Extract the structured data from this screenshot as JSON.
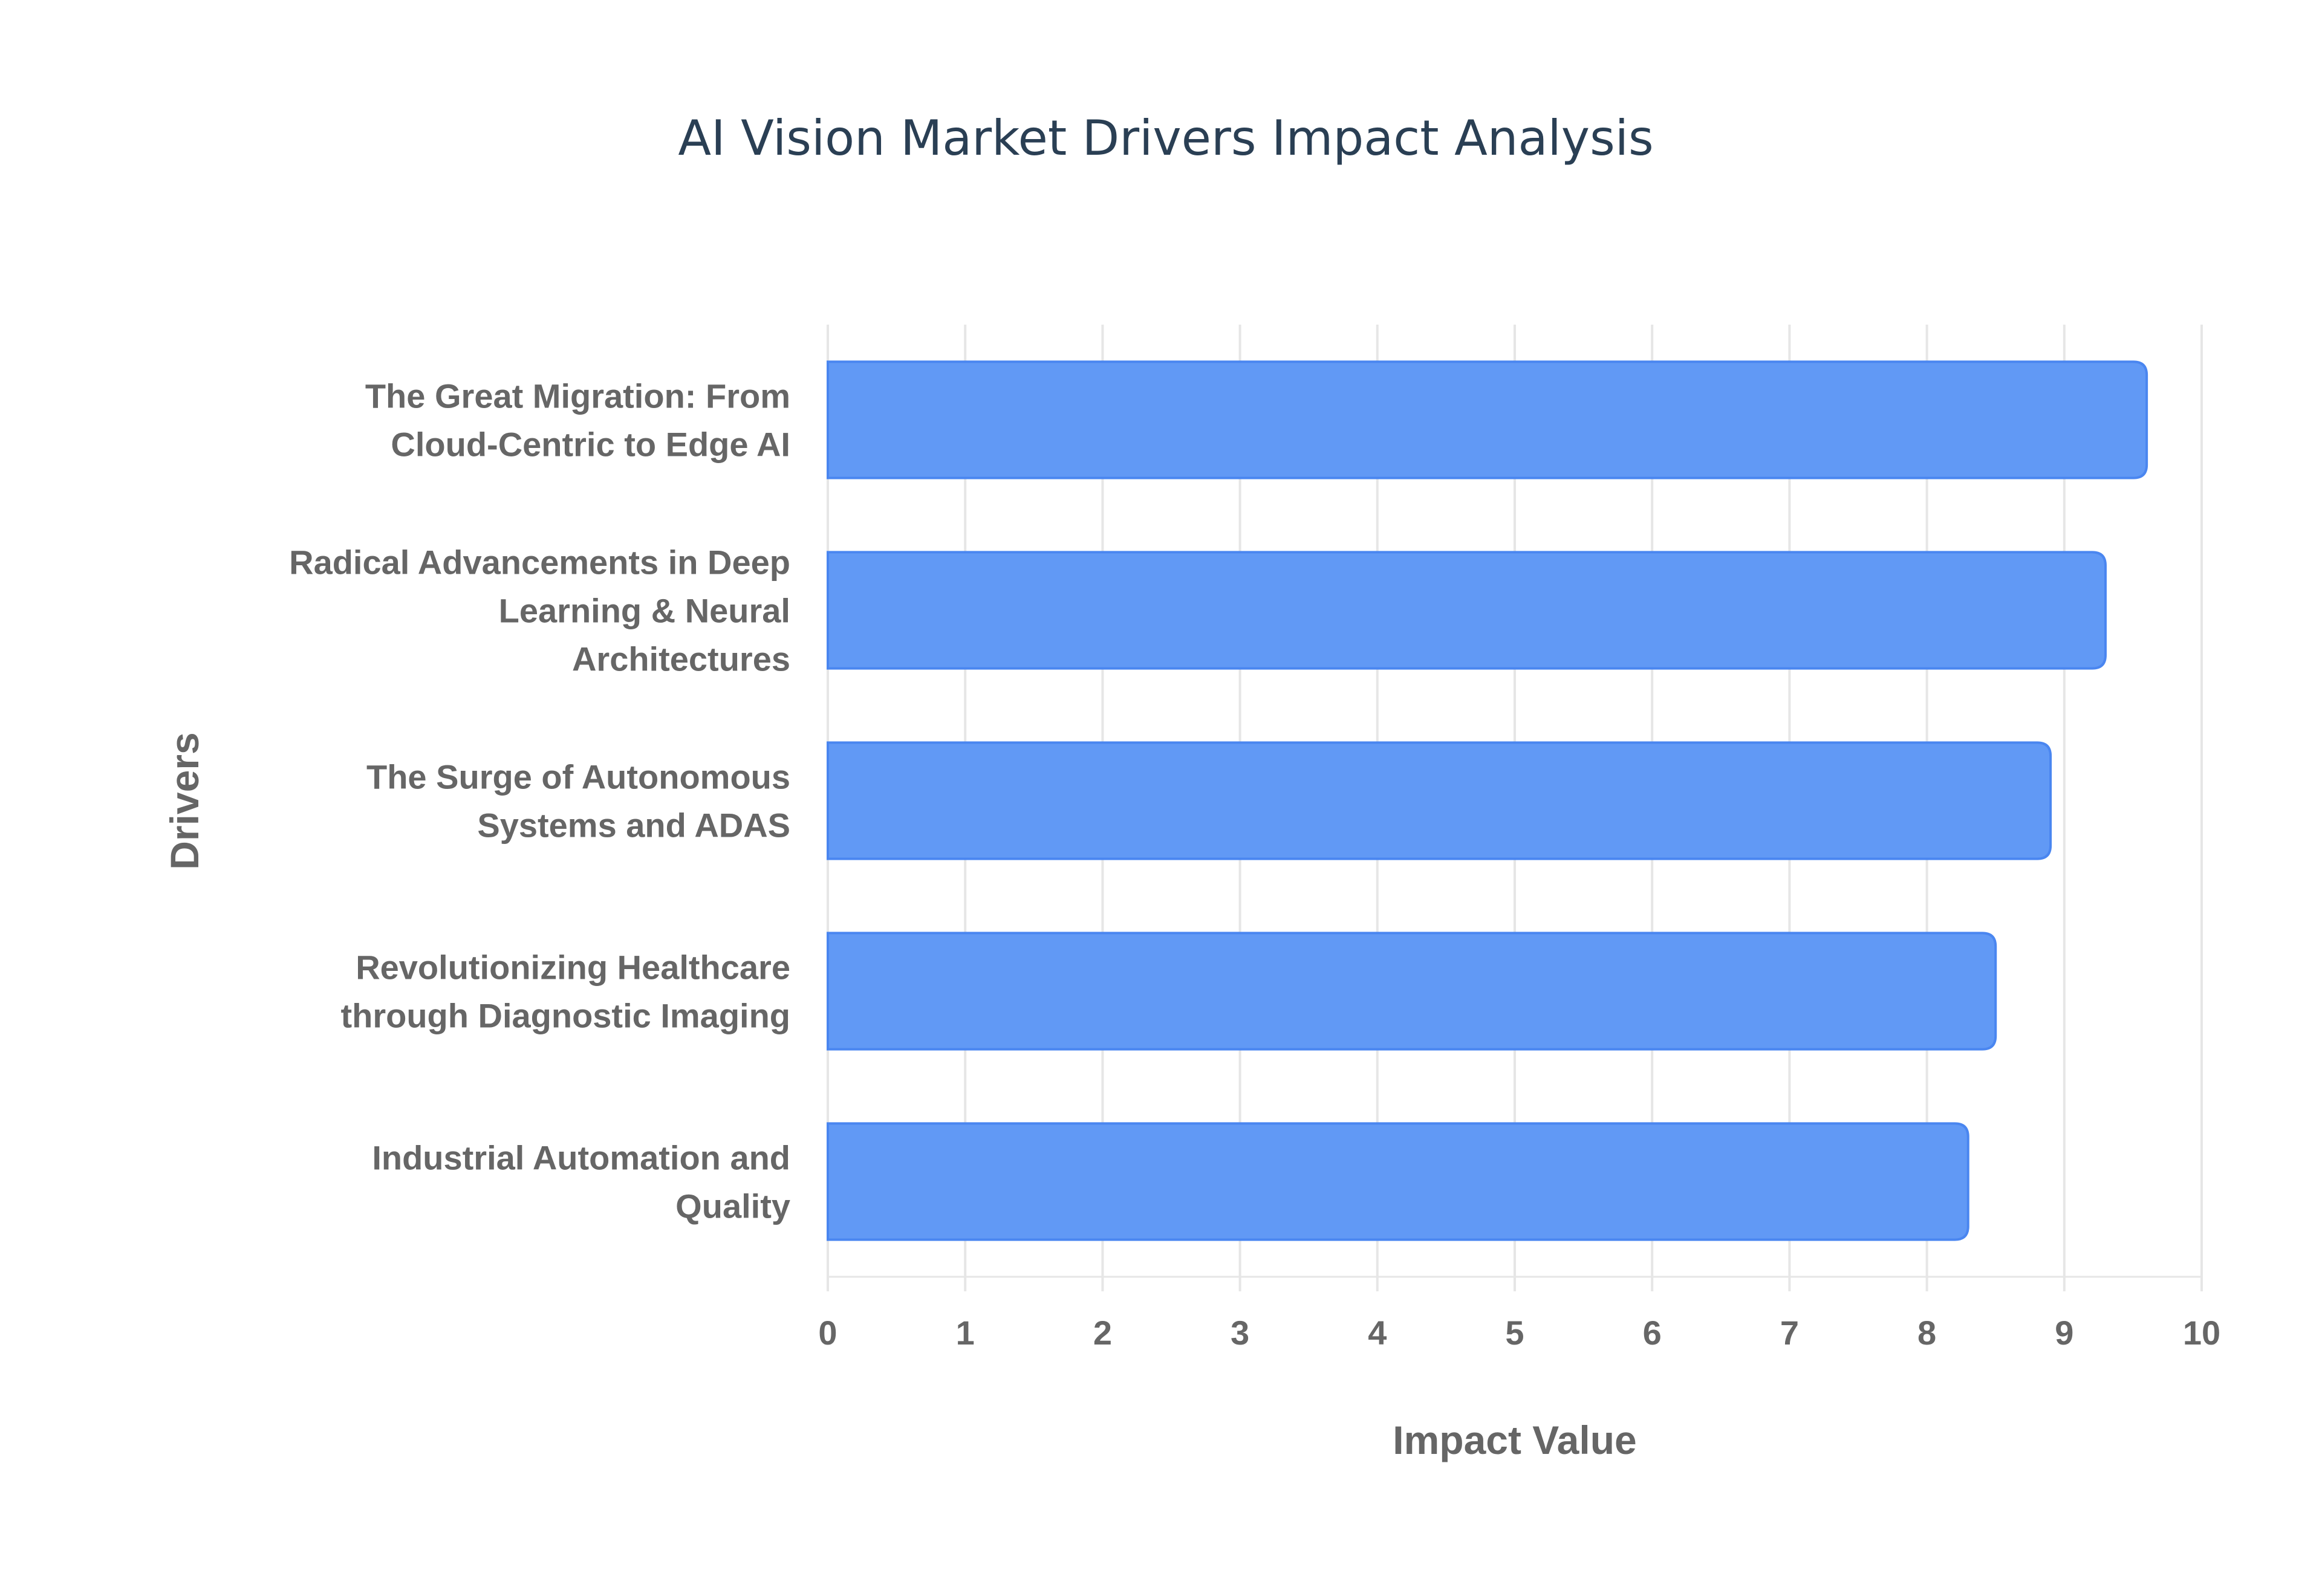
{
  "chart_data": {
    "type": "bar",
    "orientation": "horizontal",
    "title": "AI Vision Market Drivers Impact Analysis",
    "xlabel": "Impact Value",
    "ylabel": "Drivers",
    "xlim": [
      0,
      10
    ],
    "xticks": [
      "0",
      "1",
      "2",
      "3",
      "4",
      "5",
      "6",
      "7",
      "8",
      "9",
      "10"
    ],
    "grid": true,
    "categories": [
      [
        "The Great Migration: From",
        "Cloud-Centric to Edge AI"
      ],
      [
        "Radical Advancements in Deep",
        "Learning & Neural",
        "Architectures"
      ],
      [
        "The Surge of Autonomous",
        "Systems and ADAS"
      ],
      [
        "Revolutionizing Healthcare",
        "through Diagnostic Imaging"
      ],
      [
        "Industrial Automation and",
        "Quality"
      ]
    ],
    "values": [
      9.6,
      9.3,
      8.9,
      8.5,
      8.3
    ],
    "colors": {
      "bar": "#6199f5",
      "bar_border": "#4a86f0",
      "grid": "#e6e6e6",
      "title": "#2a3f54",
      "text": "#666666"
    }
  }
}
